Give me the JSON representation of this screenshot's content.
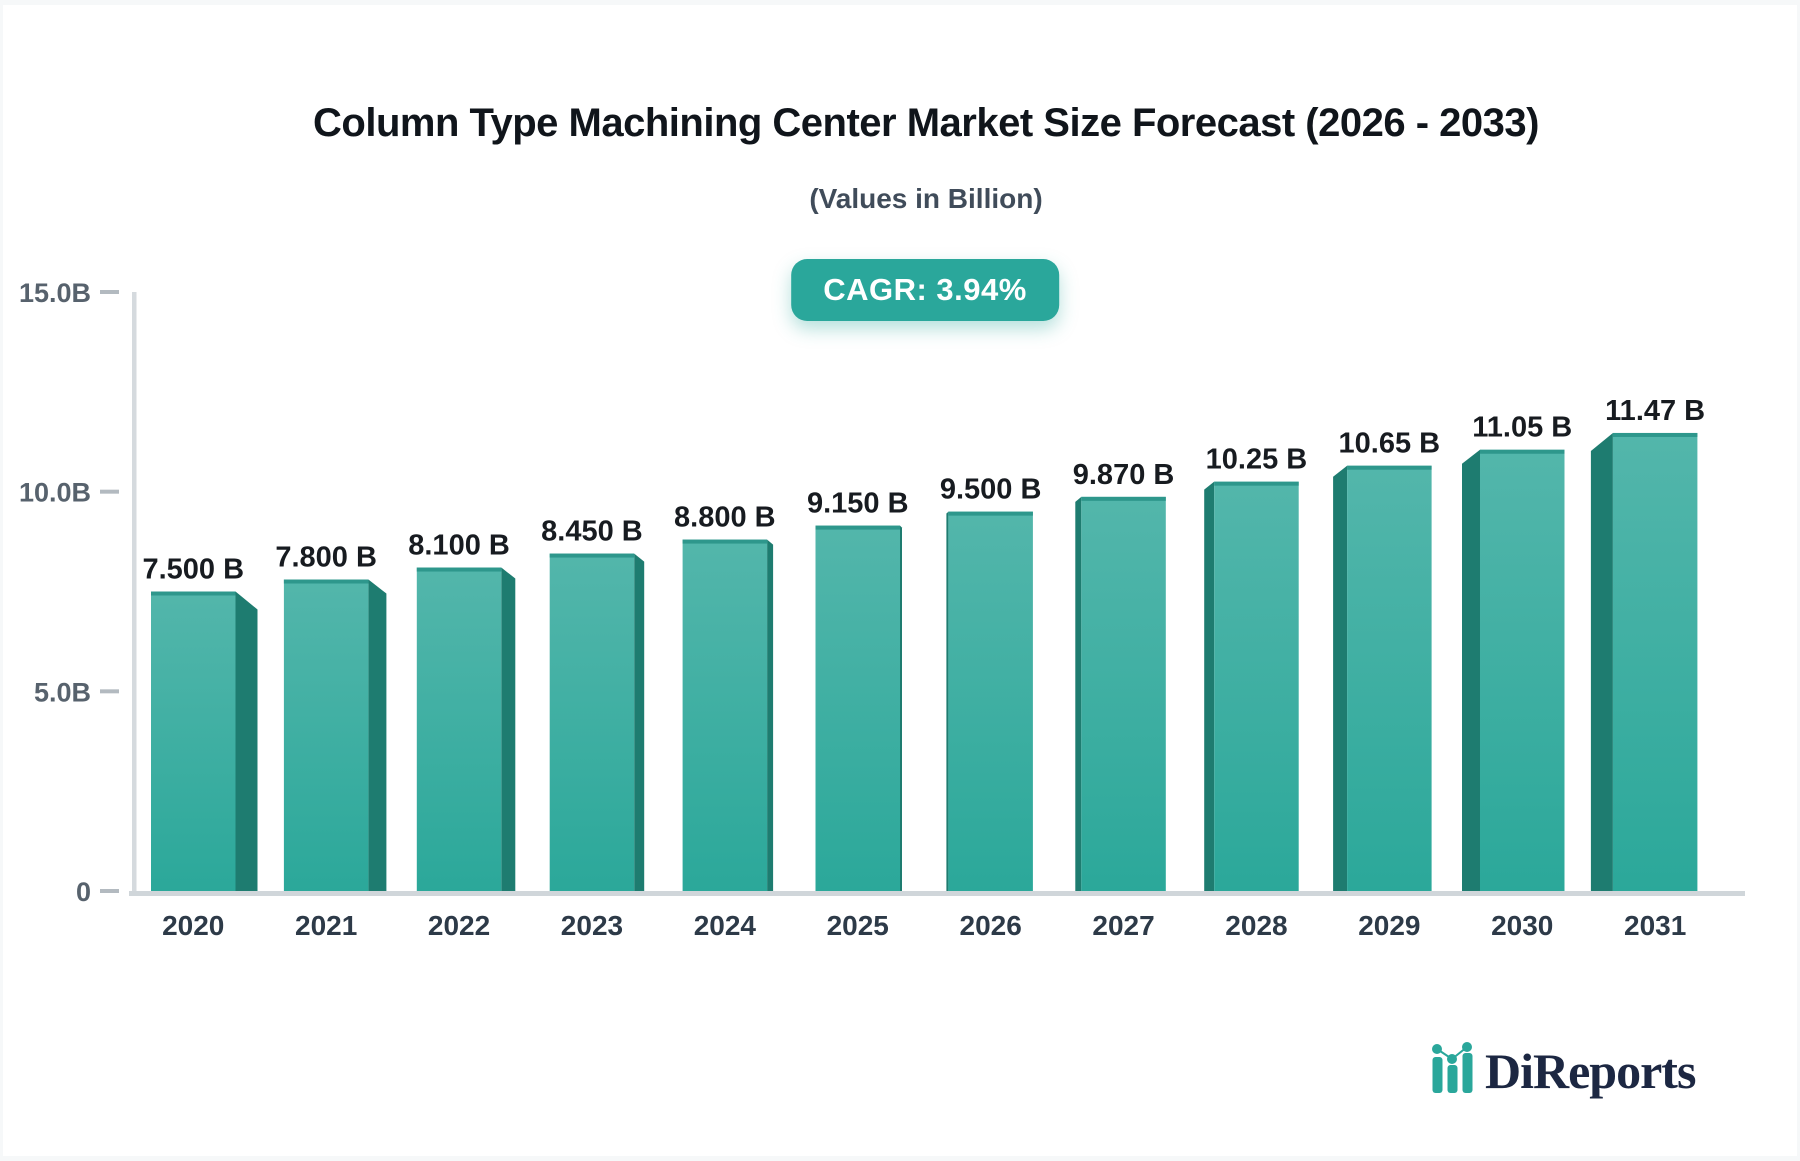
{
  "chart_data": {
    "type": "bar",
    "title": "Column Type Machining Center Market Size Forecast (2026 - 2033)",
    "subtitle": "(Values in Billion)",
    "cagr_label": "CAGR: 3.94%",
    "unit": "Billion",
    "categories": [
      "2020",
      "2021",
      "2022",
      "2023",
      "2024",
      "2025",
      "2026",
      "2027",
      "2028",
      "2029",
      "2030",
      "2031"
    ],
    "values": [
      7.5,
      7.8,
      8.1,
      8.45,
      8.8,
      9.15,
      9.5,
      9.87,
      10.25,
      10.65,
      11.05,
      11.47
    ],
    "value_labels": [
      "7.500 B",
      "7.800 B",
      "8.100 B",
      "8.450 B",
      "8.800 B",
      "9.150 B",
      "9.500 B",
      "9.870 B",
      "10.25 B",
      "10.65 B",
      "11.05 B",
      "11.47 B"
    ],
    "xlabel": "",
    "ylabel": "",
    "ylim": [
      0,
      15
    ],
    "yticks": [
      {
        "value": 0,
        "label": "0"
      },
      {
        "value": 5,
        "label": "5.0B"
      },
      {
        "value": 10,
        "label": "10.0B"
      },
      {
        "value": 15,
        "label": "15.0B"
      }
    ],
    "grid": false,
    "legend": "none",
    "bar_style": "3d-perspective",
    "colors": {
      "accent": "#2aa79b",
      "bar_face_top": "#53b6ab",
      "bar_face_bottom": "#2ba89a",
      "bar_cap": "#2e978c",
      "bar_side": "#1e7c70",
      "axis_line": "#d5dade",
      "baseline": "#d0d6da",
      "tick": "#b3bac0",
      "y_label": "#57626d",
      "x_label": "#2d3a48",
      "value_label": "#171b20"
    }
  },
  "logo": {
    "text": "DiReports",
    "icon": "bar-chart-logo-icon",
    "icon_color": "#2aa79b",
    "text_color": "#1c2742"
  }
}
